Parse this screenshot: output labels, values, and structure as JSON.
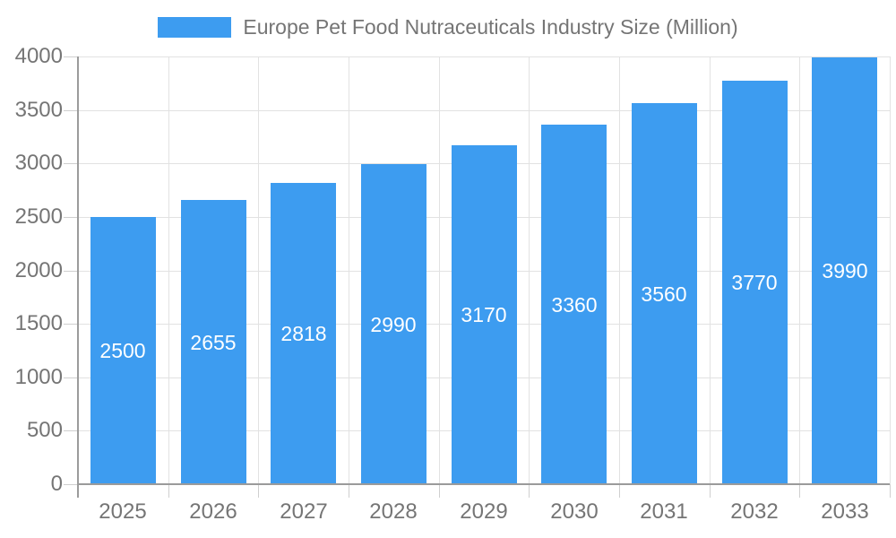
{
  "colors": {
    "bar": "#3d9cf0",
    "grid": "#e2e2e2",
    "tick": "#cfcfcf",
    "axis": "#9b9b9b",
    "text": "#757575",
    "bar_label_text": "#ffffff",
    "background": "#ffffff"
  },
  "legend": {
    "label": "Europe Pet Food Nutraceuticals Industry Size (Million)"
  },
  "chart_data": {
    "type": "bar",
    "title": "Europe Pet Food Nutraceuticals Industry Size (Million)",
    "categories": [
      "2025",
      "2026",
      "2027",
      "2028",
      "2029",
      "2030",
      "2031",
      "2032",
      "2033"
    ],
    "values": [
      2500,
      2655,
      2818,
      2990,
      3170,
      3360,
      3560,
      3770,
      3990
    ],
    "xlabel": "",
    "ylabel": "",
    "ylim": [
      0,
      4000
    ],
    "ytick_step": 500,
    "ytick_labels": [
      "0",
      "500",
      "1000",
      "1500",
      "2000",
      "2500",
      "3000",
      "3500",
      "4000"
    ],
    "grid": true,
    "legend_position": "top",
    "bar_value_labels": "inside-center"
  }
}
